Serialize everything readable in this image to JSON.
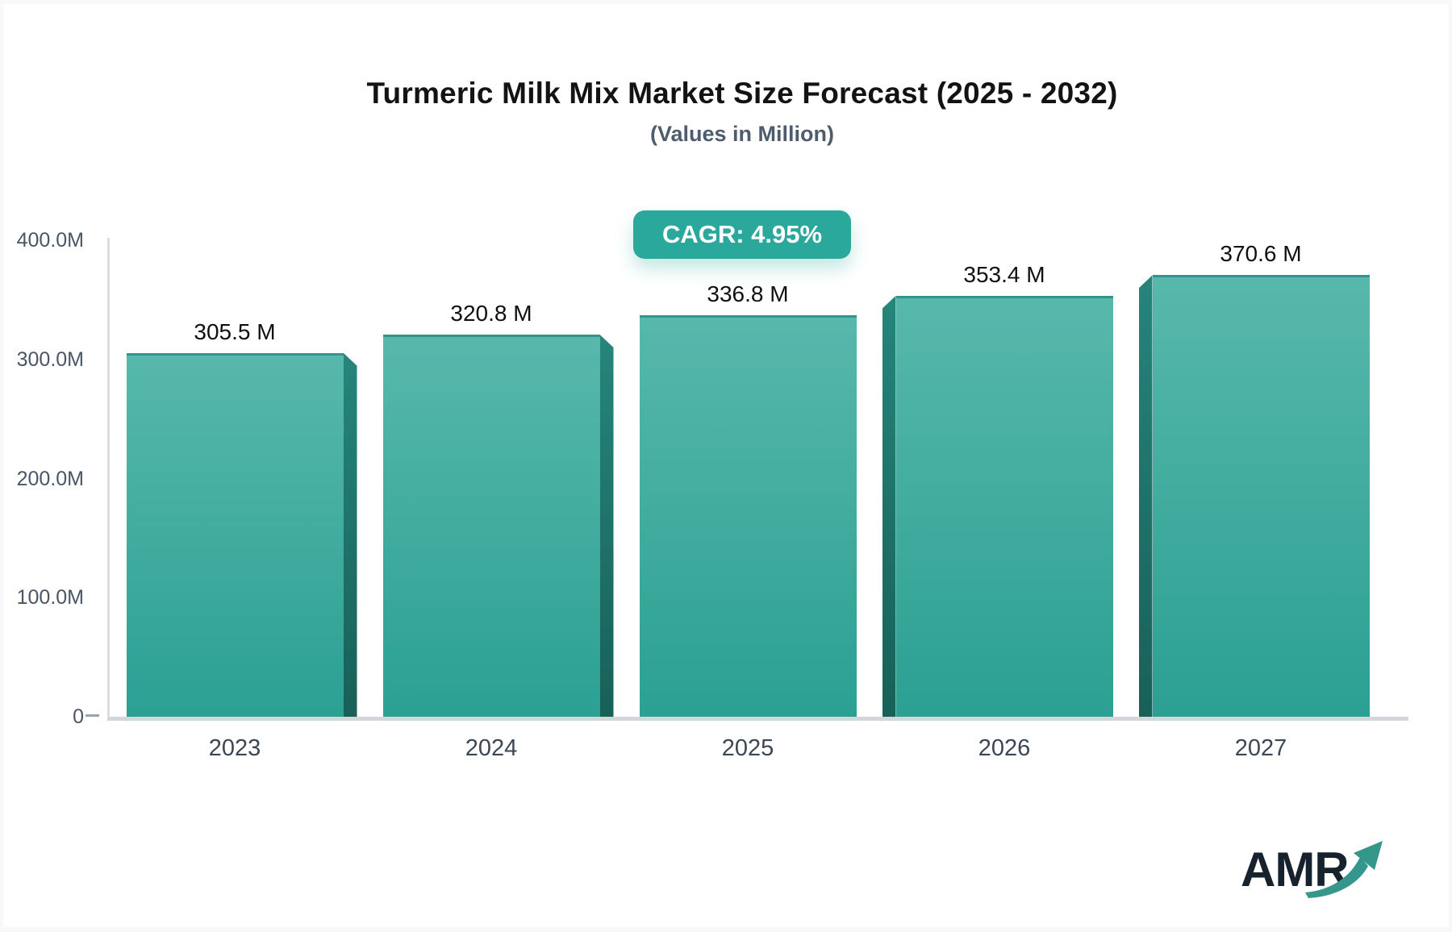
{
  "page": {
    "background": "#f6f8fa",
    "card_background": "#ffffff"
  },
  "header": {
    "title": "Turmeric Milk Mix Market Size Forecast (2025 - 2032)",
    "subtitle": "(Values in Million)"
  },
  "badge": {
    "label": "CAGR: 4.95%",
    "background": "#2aa89c",
    "text_color": "#ffffff"
  },
  "chart_data": {
    "type": "bar",
    "title": "Turmeric Milk Mix Market Size Forecast (2025 - 2032)",
    "subtitle": "(Values in Million)",
    "annotation": "CAGR: 4.95%",
    "categories": [
      "2023",
      "2024",
      "2025",
      "2026",
      "2027"
    ],
    "values": [
      305.5,
      320.8,
      336.8,
      353.4,
      370.6
    ],
    "value_labels": [
      "305.5 M",
      "320.8 M",
      "336.8 M",
      "353.4 M",
      "370.6 M"
    ],
    "ylim": [
      0,
      400
    ],
    "yticks": [
      {
        "label": "0",
        "value": 0
      },
      {
        "label": "100.0M",
        "value": 100
      },
      {
        "label": "200.0M",
        "value": 200
      },
      {
        "label": "300.0M",
        "value": 300
      },
      {
        "label": "400.0M",
        "value": 400
      }
    ],
    "grid": false,
    "legend": false,
    "bar_color_top": "#57b8ab",
    "bar_color_bottom": "#2ba093",
    "bar_side_color": "#1f7a6f",
    "axis_color": "#d3d7dc",
    "tick_label_color": "#4a5566"
  },
  "logo": {
    "text": "AMR",
    "text_color": "#16222e",
    "arrow_color": "#35968b"
  }
}
